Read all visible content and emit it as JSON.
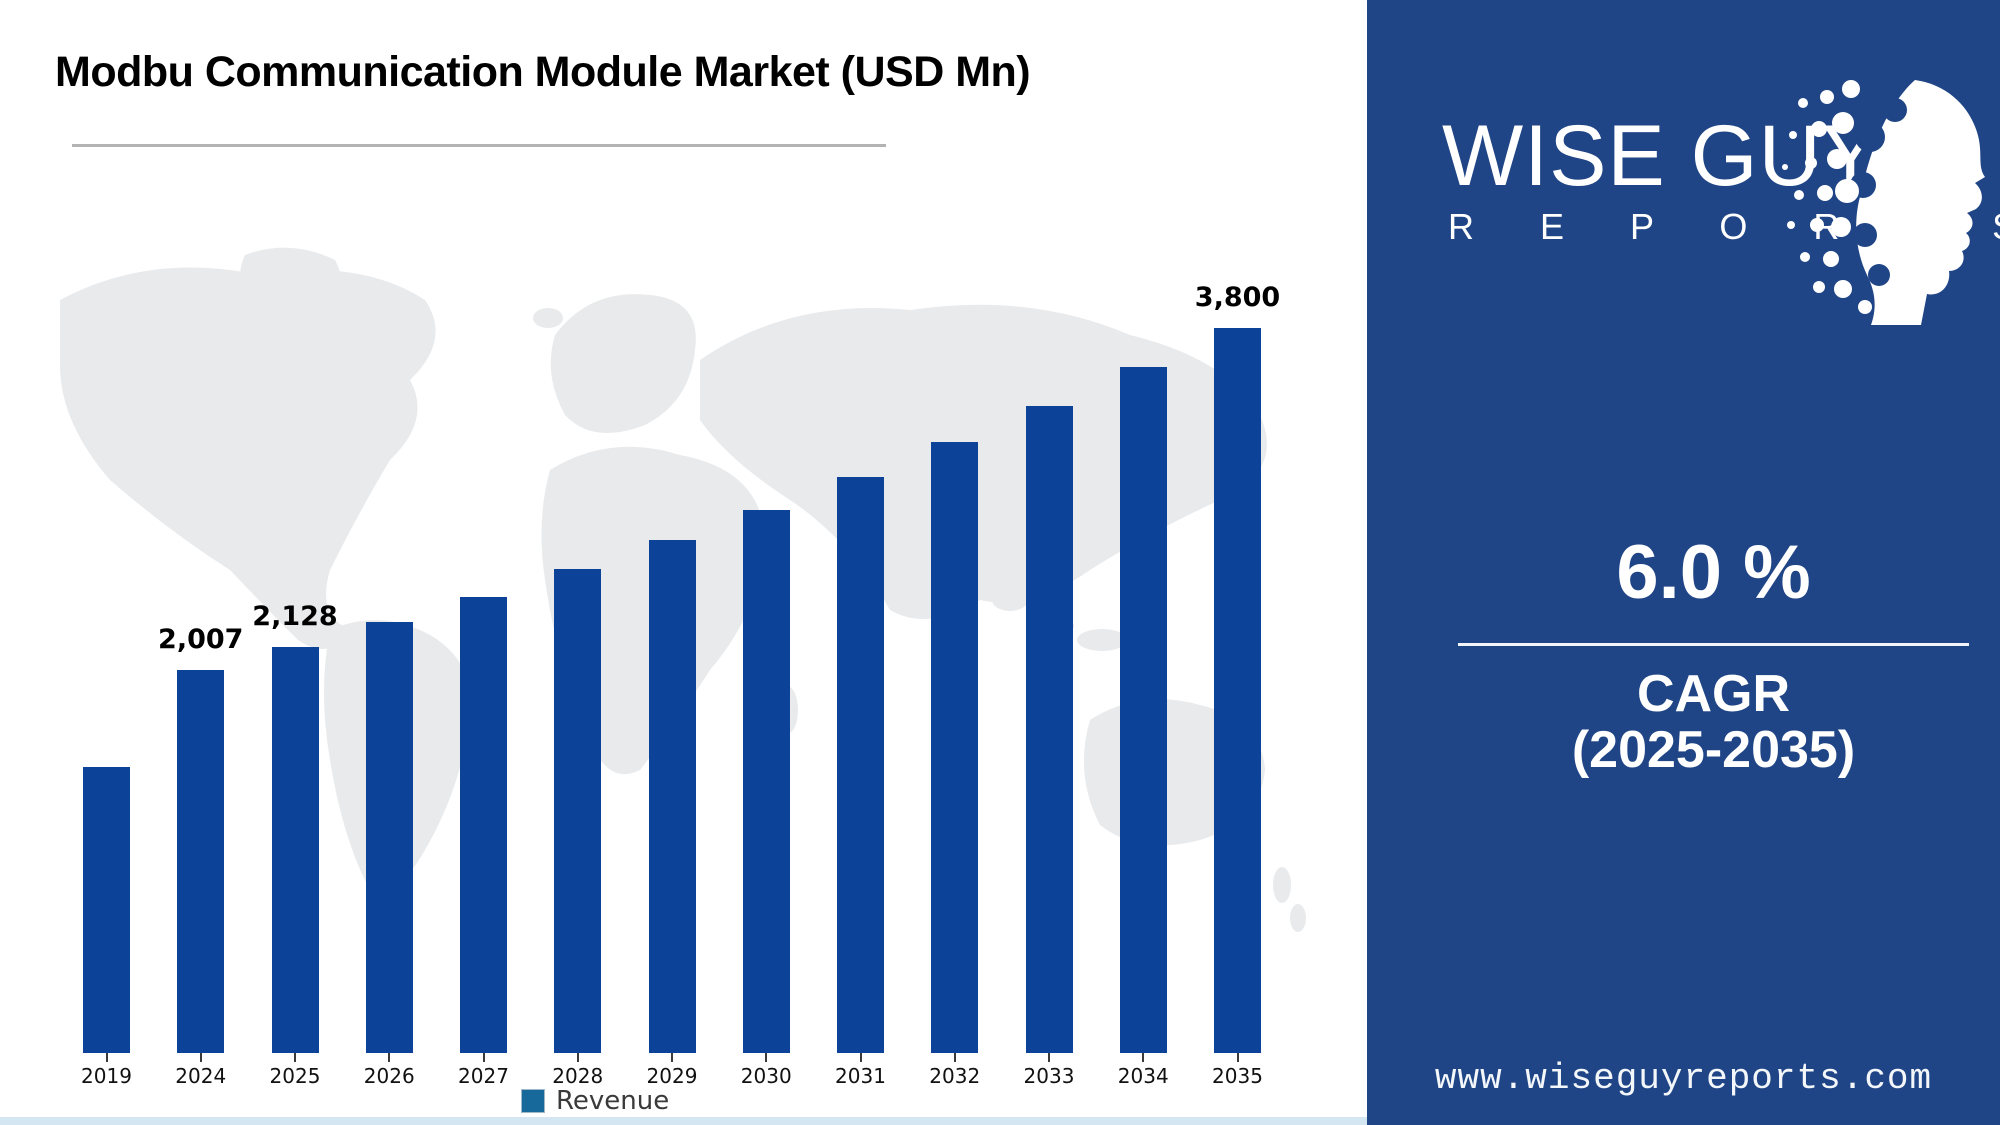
{
  "title": "Modbu Communication Module Market (USD Mn)",
  "chart_data": {
    "type": "bar",
    "title": "Modbu Communication Module Market (USD Mn)",
    "unit": "USD Mn",
    "categories": [
      "2019",
      "2024",
      "2025",
      "2026",
      "2027",
      "2028",
      "2029",
      "2030",
      "2031",
      "2032",
      "2033",
      "2034",
      "2035"
    ],
    "series": [
      {
        "name": "Revenue",
        "values": [
          1500,
          2007,
          2128,
          2256,
          2391,
          2535,
          2687,
          2848,
          3019,
          3200,
          3392,
          3596,
          3800
        ]
      }
    ],
    "shown_data_labels": {
      "2024": "2,007",
      "2025": "2,128",
      "2035": "3,800"
    },
    "ylim": [
      0,
      4000
    ],
    "grid": false,
    "legend_position": "bottom",
    "bar_color": "#0c4399"
  },
  "legend": {
    "label": "Revenue",
    "swatch_color": "#17699c"
  },
  "sidebar": {
    "background_color": "#1f4586",
    "logo": {
      "line1": "WISE GUY",
      "line2": "R E P O R T S"
    },
    "cagr_value": "6.0 %",
    "cagr_line1": "CAGR",
    "cagr_line2": "(2025-2035)",
    "website": "www.wiseguyreports.com"
  }
}
